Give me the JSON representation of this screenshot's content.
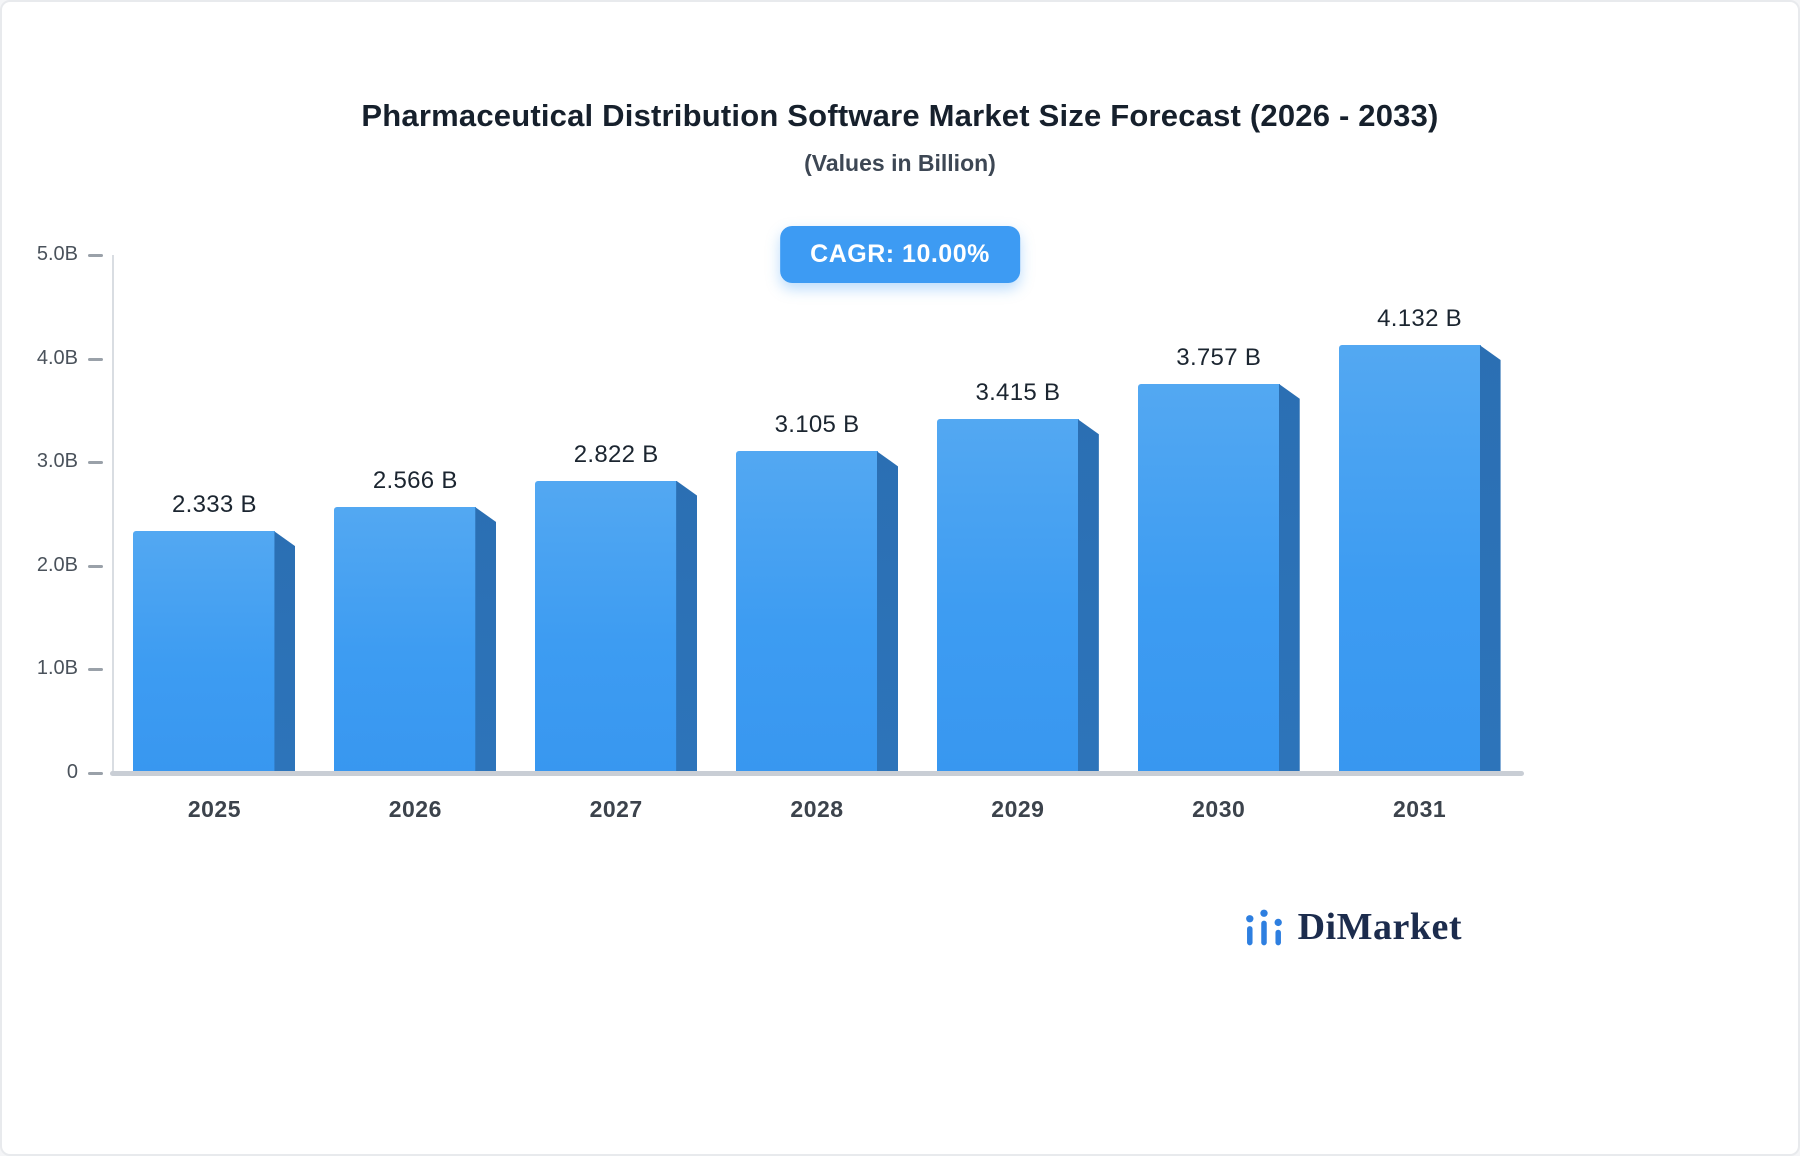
{
  "chart_data": {
    "type": "bar",
    "title": "Pharmaceutical Distribution Software Market Size Forecast (2026 - 2033)",
    "subtitle": "(Values in Billion)",
    "cagr_label": "CAGR: 10.00%",
    "categories": [
      "2025",
      "2026",
      "2027",
      "2028",
      "2029",
      "2030",
      "2031"
    ],
    "values": [
      2.333,
      2.566,
      2.822,
      3.105,
      3.415,
      3.757,
      4.132
    ],
    "value_labels": [
      "2.333 B",
      "2.566 B",
      "2.822 B",
      "3.105 B",
      "3.415 B",
      "3.757 B",
      "4.132 B"
    ],
    "y_ticks": [
      "5.0B",
      "4.0B",
      "3.0B",
      "2.0B",
      "1.0B",
      "0"
    ],
    "ylim": [
      0,
      5.0
    ],
    "xlabel": "",
    "ylabel": "",
    "grid": false,
    "legend": "none",
    "bar_color": "#3d9cf2",
    "bar_side_color": "#2b6fb3",
    "accent_color": "#3d9bf3"
  },
  "branding": {
    "logo_text": "DiMarket",
    "logo_color": "#1c2c4d",
    "logo_icon_color": "#2e7fe0"
  }
}
